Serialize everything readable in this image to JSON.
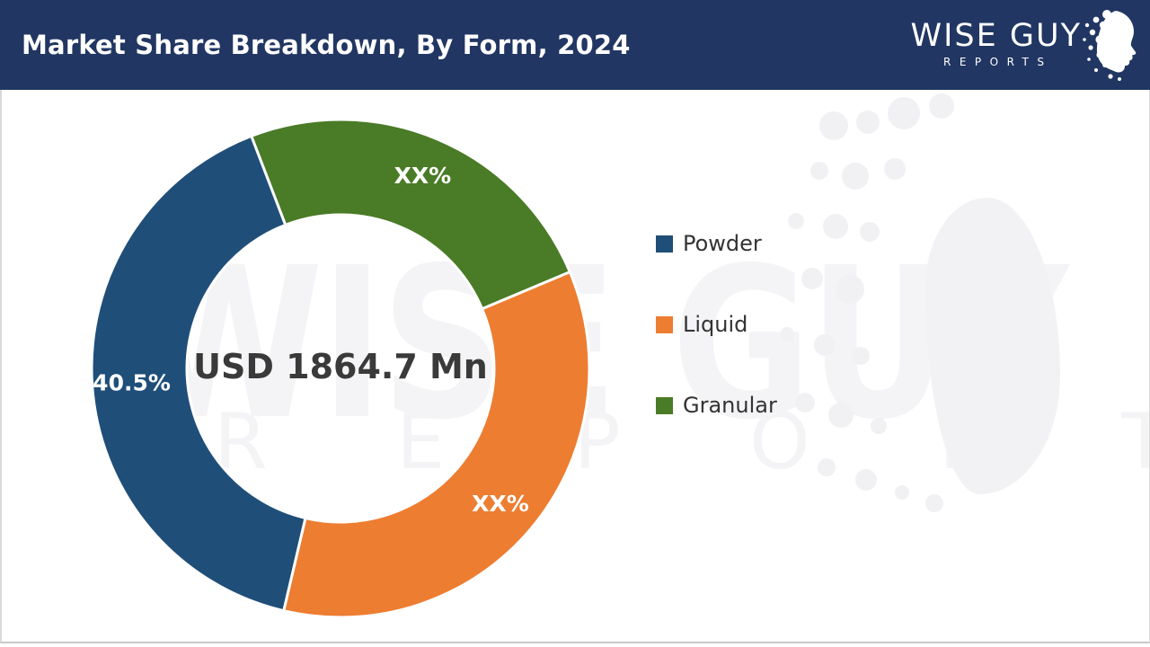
{
  "header": {
    "title": "Market Share Breakdown, By Form, 2024",
    "bg_color": "#213662",
    "logo": {
      "line1": "WISE GUY",
      "line2": "REPORTS"
    }
  },
  "chart_data": {
    "type": "donut",
    "title": "Market Share Breakdown, By Form, 2024",
    "center_label": "USD 1864.7 Mn",
    "start_angle_deg": -21,
    "segments": [
      {
        "name": "Granular",
        "value_pct": 24.5,
        "display_label": "XX%",
        "color": "#4A7B26"
      },
      {
        "name": "Liquid",
        "value_pct": 35.0,
        "display_label": "XX%",
        "color": "#ED7D31"
      },
      {
        "name": "Powder",
        "value_pct": 40.5,
        "display_label": "40.5%",
        "color": "#1F4E79"
      }
    ],
    "legend": {
      "position": "right",
      "order": [
        "Powder",
        "Liquid",
        "Granular"
      ]
    },
    "colors": {
      "label_text": "#FFFFFF",
      "center_text": "#3A3A3A"
    }
  },
  "watermark": {
    "line1": "WISE GUY",
    "line2": "R E P O R T S"
  }
}
